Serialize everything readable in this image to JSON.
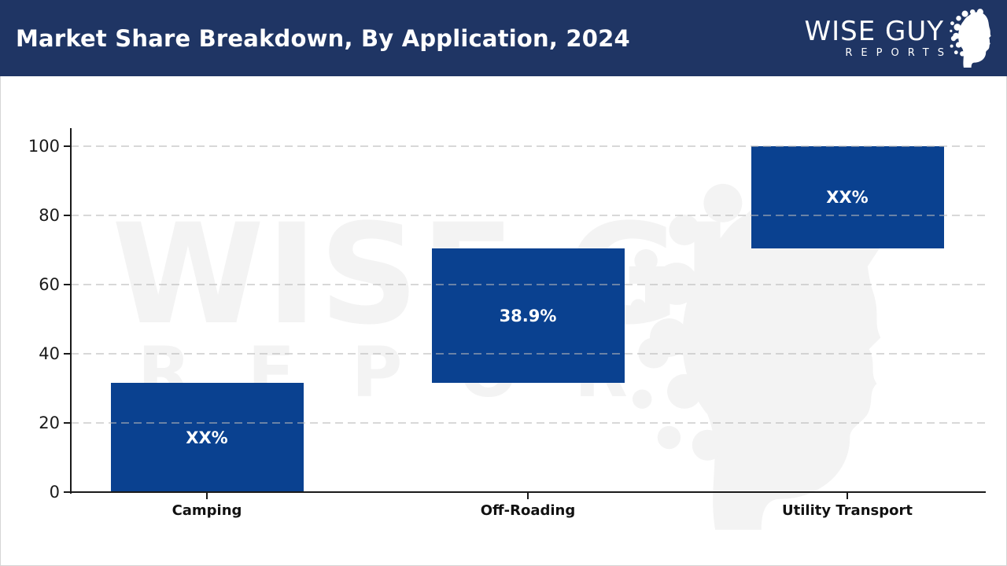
{
  "header": {
    "title": "Market Share Breakdown, By Application, 2024",
    "logo": {
      "wordmark": "WISE GUY",
      "subtitle": "REPORTS"
    }
  },
  "watermark": {
    "wordmark": "WISE GUY",
    "subtitle": "REPORTS"
  },
  "chart_data": {
    "type": "bar",
    "subtype": "floating-segment-bars",
    "title": "Market Share Breakdown, By Application, 2024",
    "categories": [
      "Camping",
      "Off-Roading",
      "Utility Transport"
    ],
    "segments": [
      {
        "category": "Camping",
        "start": 0,
        "end": 31.5,
        "label": "XX%"
      },
      {
        "category": "Off-Roading",
        "start": 31.5,
        "end": 70.4,
        "label": "38.9%"
      },
      {
        "category": "Utility Transport",
        "start": 70.4,
        "end": 100,
        "label": "XX%"
      }
    ],
    "xlabel": "",
    "ylabel": "",
    "ylim": [
      0,
      100
    ],
    "yticks": [
      0,
      20,
      40,
      60,
      80,
      100
    ],
    "grid": "dashed-horizontal",
    "legend": "none",
    "colors": {
      "bar": "#0a4190",
      "bar_label": "#ffffff",
      "header_bg": "#1f3564",
      "grid": "#d9d9d9",
      "axis": "#1a1a1a",
      "watermark": "#f3f3f3"
    }
  }
}
